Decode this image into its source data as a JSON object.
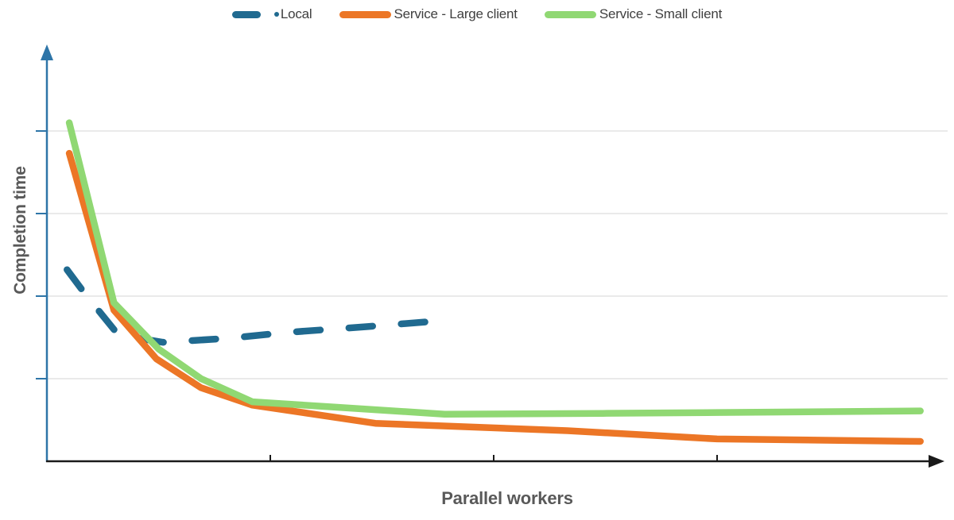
{
  "page_bg": "#ffffff",
  "legend": {
    "items": [
      {
        "label": "Local",
        "color": "#206A90",
        "style": "dash-dot"
      },
      {
        "label": "Service - Large client",
        "color": "#EC7626",
        "style": "solid"
      },
      {
        "label": "Service - Small client",
        "color": "#90D873",
        "style": "solid"
      }
    ]
  },
  "axes": {
    "y_label": "Completion time",
    "x_label": "Parallel workers",
    "label_color": "#595959",
    "y_axis_color": "#2E75A8",
    "x_axis_color": "#1a1a1a",
    "gridline_color": "#e4e4e4"
  },
  "chart_data": {
    "type": "line",
    "title": "",
    "xlabel": "Parallel workers",
    "ylabel": "Completion time",
    "x_axis": {
      "min": 0,
      "max": 4.01,
      "ticks": [
        1,
        2,
        3
      ],
      "tick_labels": []
    },
    "y_axis": {
      "min": 0,
      "max": 5.0,
      "gridlines": [
        1,
        2,
        3,
        4
      ],
      "tick_labels": []
    },
    "grid": "horizontal",
    "legend_position": "top-center",
    "units_note": "axes are unlabeled; y in gridline units above x-axis, x in tick units",
    "series": [
      {
        "name": "Local",
        "color": "#206A90",
        "line_style": "dashed",
        "points": [
          [
            0.09,
            2.32
          ],
          [
            0.17,
            2.03
          ],
          [
            0.32,
            1.53
          ],
          [
            0.52,
            1.44
          ],
          [
            0.82,
            1.49
          ],
          [
            1.07,
            1.56
          ],
          [
            1.43,
            1.63
          ],
          [
            1.8,
            1.71
          ]
        ]
      },
      {
        "name": "Service - Large client",
        "color": "#EC7626",
        "line_style": "solid",
        "points": [
          [
            0.1,
            3.73
          ],
          [
            0.3,
            1.83
          ],
          [
            0.49,
            1.24
          ],
          [
            0.69,
            0.89
          ],
          [
            0.92,
            0.68
          ],
          [
            1.47,
            0.46
          ],
          [
            2.33,
            0.37
          ],
          [
            3.0,
            0.27
          ],
          [
            3.91,
            0.24
          ]
        ]
      },
      {
        "name": "Service - Small client",
        "color": "#90D873",
        "line_style": "solid",
        "points": [
          [
            0.1,
            4.1
          ],
          [
            0.3,
            1.92
          ],
          [
            0.5,
            1.36
          ],
          [
            0.69,
            1.0
          ],
          [
            0.92,
            0.72
          ],
          [
            1.78,
            0.57
          ],
          [
            2.49,
            0.58
          ],
          [
            3.0,
            0.59
          ],
          [
            3.91,
            0.61
          ]
        ]
      }
    ]
  }
}
